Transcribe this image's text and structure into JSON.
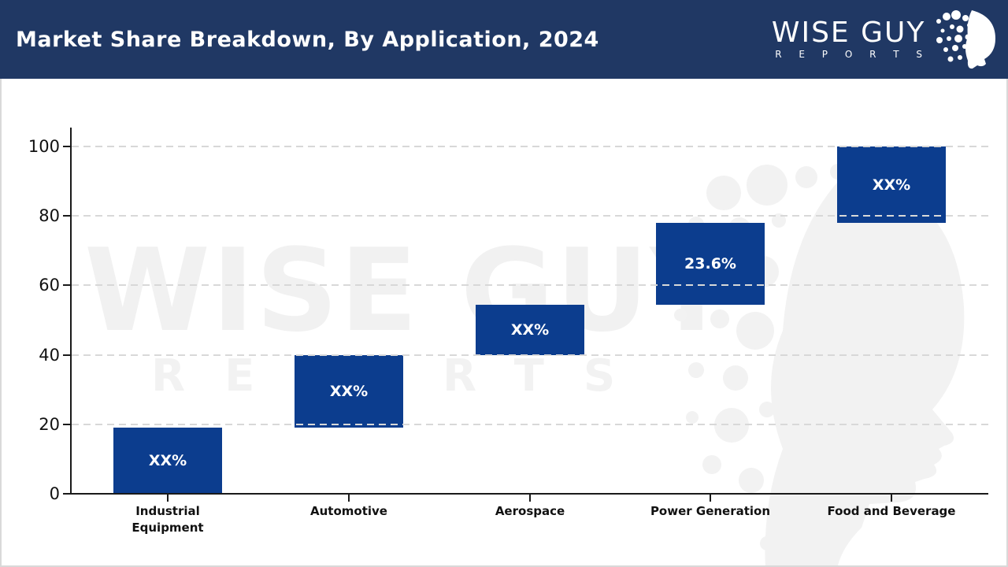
{
  "header": {
    "title": "Market Share Breakdown, By Application, 2024",
    "bg_color": "#203864",
    "logo": {
      "line1": "WISE GUY",
      "line2": "R E P O R T S"
    }
  },
  "watermark": {
    "line1": "WISE GUY",
    "line2": "REPORTS"
  },
  "chart_data": {
    "type": "bar",
    "subtype": "waterfall",
    "title": "Market Share Breakdown, By Application, 2024",
    "categories": [
      "Industrial Equipment",
      "Automotive",
      "Aerospace",
      "Power Generation",
      "Food and Beverage"
    ],
    "segments": [
      {
        "category": "Industrial Equipment",
        "category_display": "Industrial\nEquipment",
        "label": "XX%",
        "start": 0,
        "end": 19
      },
      {
        "category": "Automotive",
        "category_display": "Automotive",
        "label": "XX%",
        "start": 19,
        "end": 40
      },
      {
        "category": "Aerospace",
        "category_display": "Aerospace",
        "label": "XX%",
        "start": 40,
        "end": 54.4
      },
      {
        "category": "Power Generation",
        "category_display": "Power Generation",
        "label": "23.6%",
        "start": 54.4,
        "end": 78
      },
      {
        "category": "Food and Beverage",
        "category_display": "Food and Beverage",
        "label": "XX%",
        "start": 78,
        "end": 100
      }
    ],
    "y_ticks": [
      0,
      20,
      40,
      60,
      80,
      100
    ],
    "ylim": [
      0,
      105
    ],
    "xlabel": "",
    "ylabel": "",
    "grid": "horizontal dashed, drawn above bars",
    "legend": "none",
    "bar_color": "#0c3d8e",
    "bar_label_color": "#ffffff",
    "unit": "%"
  }
}
